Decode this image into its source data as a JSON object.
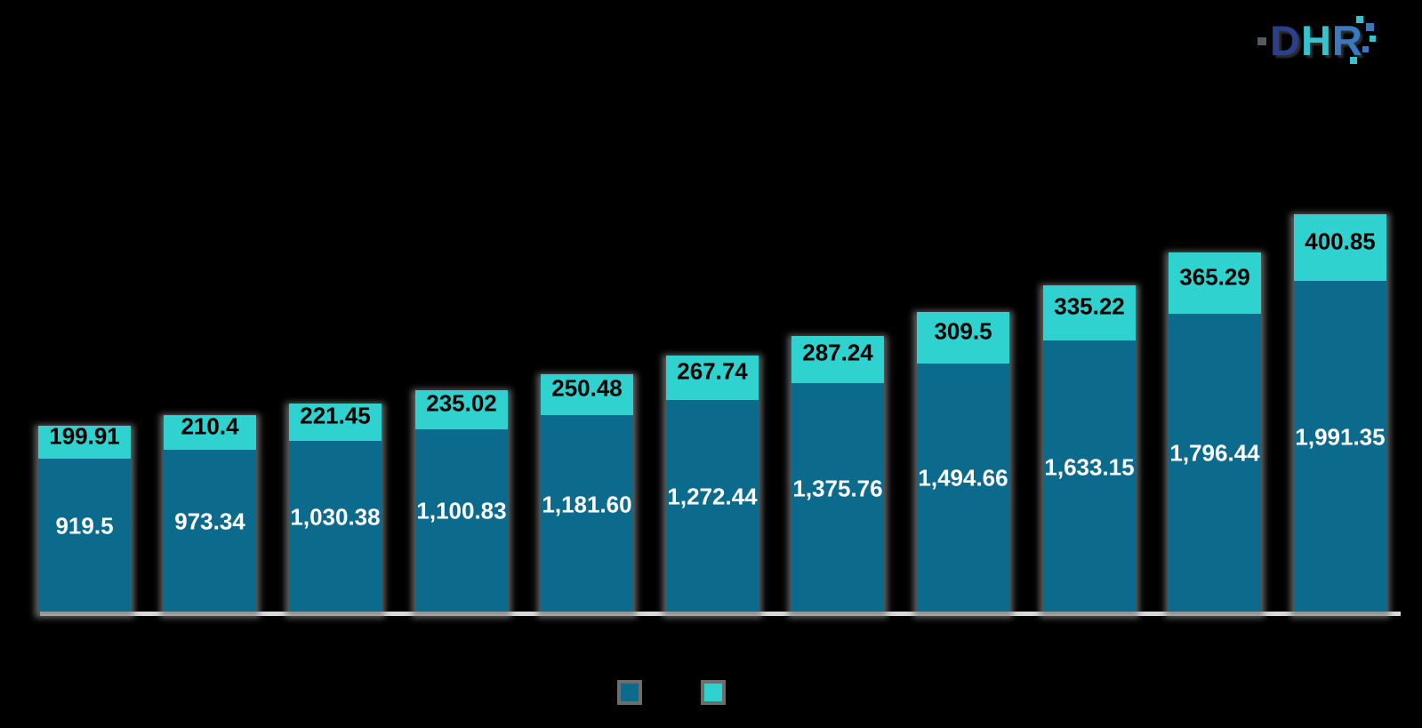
{
  "page": {
    "background_color": "#000000"
  },
  "logo": {
    "text": "DHR",
    "letters": [
      {
        "char": "D",
        "color": "#2b3f8c"
      },
      {
        "char": "H",
        "color": "#35c4ce"
      },
      {
        "char": "R",
        "color": "#3a78c0"
      }
    ]
  },
  "chart_data": {
    "type": "bar",
    "stacked": true,
    "bar_count": 11,
    "title": "",
    "xlabel": "",
    "ylabel": "",
    "axis": {
      "baseline_color": "#d9d9d9",
      "tick_labels_visible": false
    },
    "series": [
      {
        "role": "bottom-segment",
        "color": "#0c6a8d",
        "label_color": "#ffffff",
        "values": [
          919.5,
          973.34,
          1030.38,
          1100.83,
          1181.6,
          1272.44,
          1375.76,
          1494.66,
          1633.15,
          1796.44,
          1991.35
        ],
        "labels": [
          "919.5",
          "973.34",
          "1,030.38",
          "1,100.83",
          "1,181.60",
          "1,272.44",
          "1,375.76",
          "1,494.66",
          "1,633.15",
          "1,796.44",
          "1,991.35"
        ]
      },
      {
        "role": "top-segment",
        "color": "#2fd2ce",
        "label_color": "#000000",
        "values": [
          199.91,
          210.4,
          221.45,
          235.02,
          250.48,
          267.74,
          287.24,
          309.5,
          335.22,
          365.29,
          400.85
        ],
        "labels": [
          "199.91",
          "210.4",
          "221.45",
          "235.02",
          "250.48",
          "267.74",
          "287.24",
          "309.5",
          "335.22",
          "365.29",
          "400.85"
        ]
      }
    ],
    "legend": {
      "position": "bottom",
      "labels_visible": false,
      "items": [
        {
          "color": "#0c6a8d"
        },
        {
          "color": "#2fd2ce"
        }
      ]
    }
  }
}
